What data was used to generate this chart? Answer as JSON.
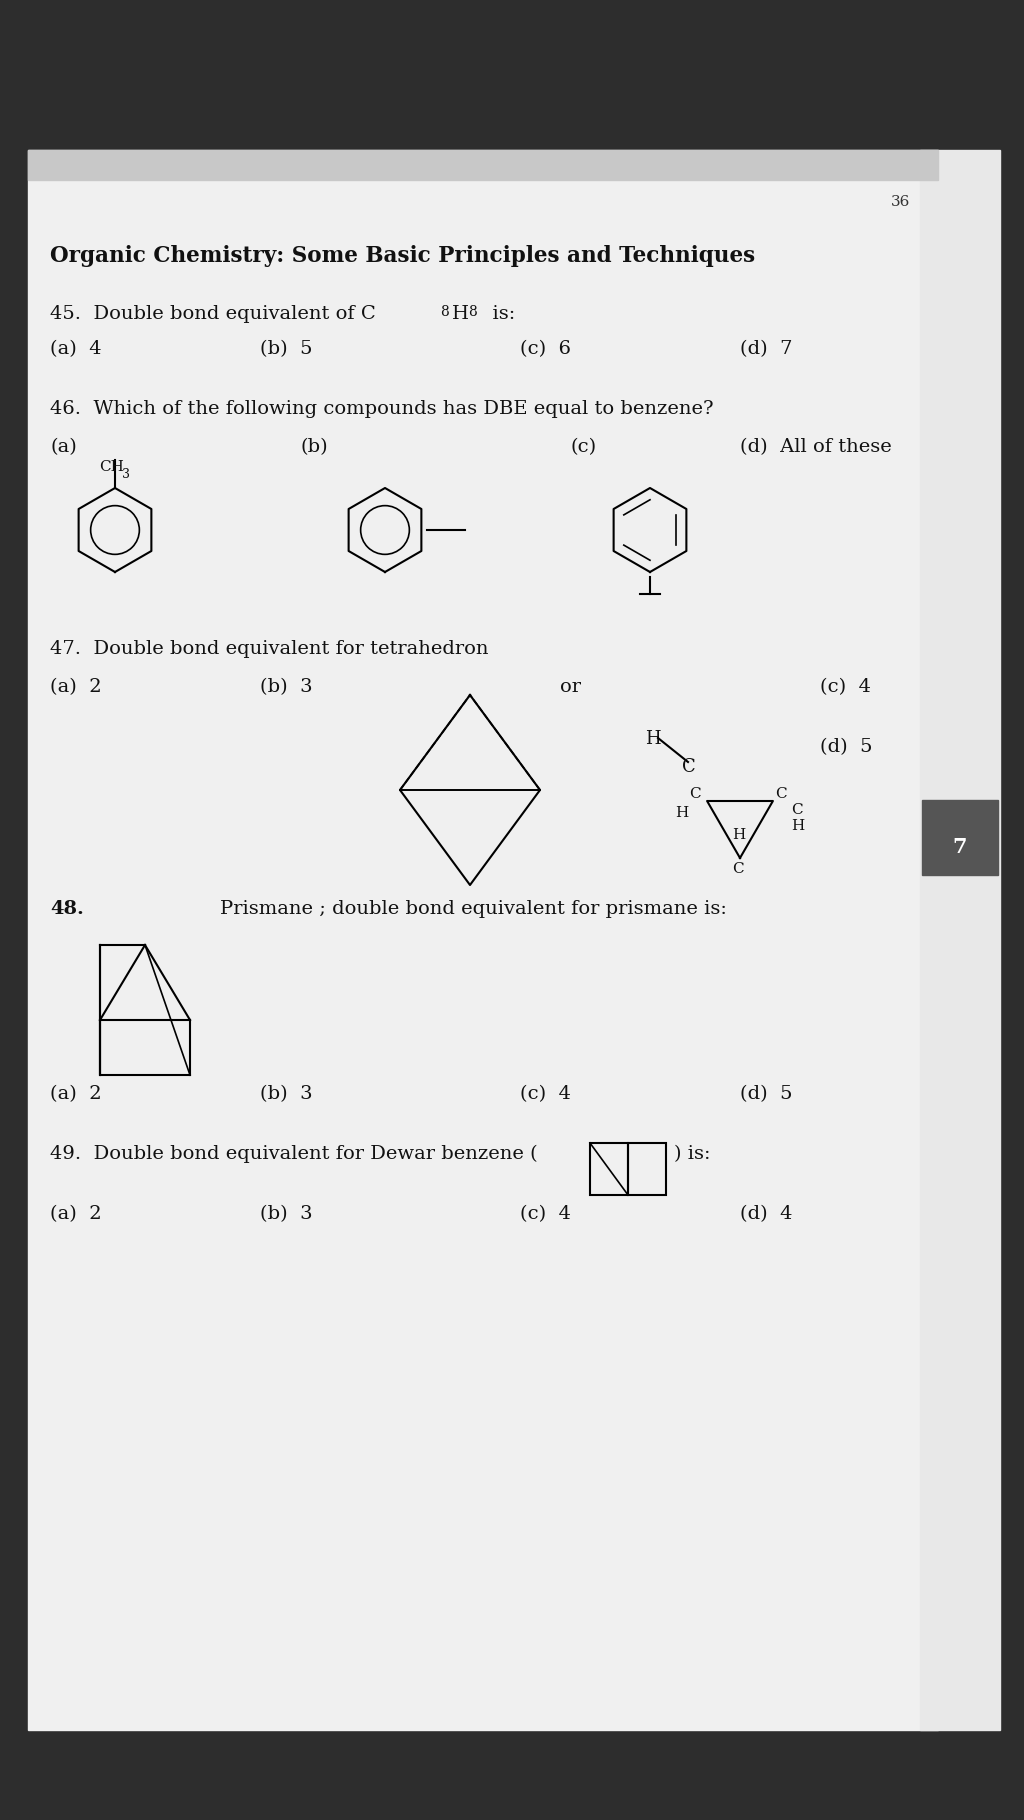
{
  "title": "Organic Chemistry: Some Basic Principles and Techniques",
  "page_num": "7",
  "page_num_small": "36",
  "bg_dark": "#2d2d2d",
  "paper_color": "#f0f0f0",
  "paper_shadow": "#d8d8d8",
  "right_strip_color": "#e8e8e8",
  "page_box_color": "#555555",
  "text_color": "#111111",
  "title_color": "#111111"
}
